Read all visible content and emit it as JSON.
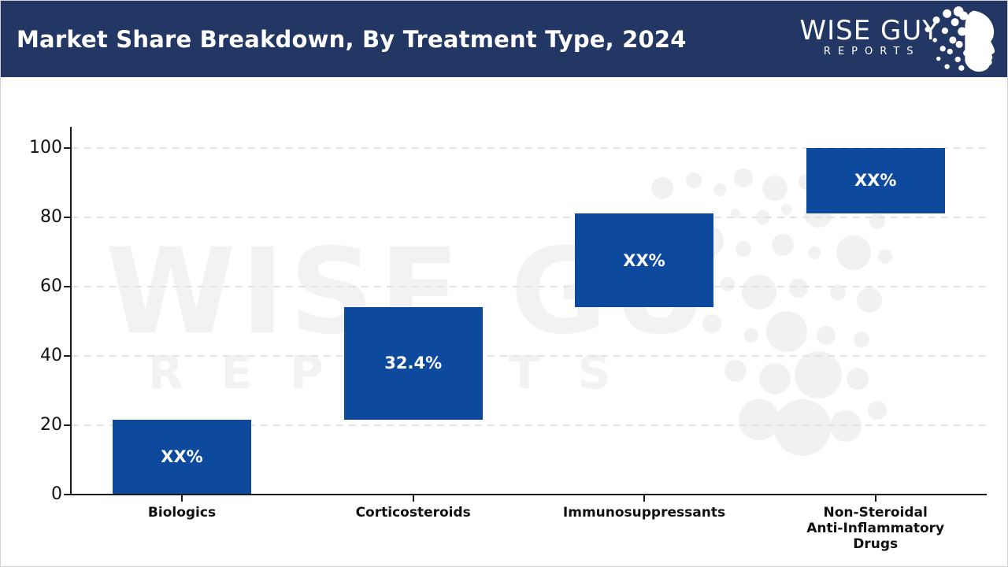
{
  "header": {
    "title": "Market Share Breakdown, By Treatment Type, 2024",
    "logo": {
      "line1": "WISE GUY",
      "line2": "REPORTS"
    }
  },
  "watermark": {
    "line1": "WISE GU",
    "line2": "REPORTS"
  },
  "colors": {
    "header_bg": "#233764",
    "bar": "#0d4a9e",
    "bar_label": "#ffffff",
    "grid": "#e4e4e4",
    "axis": "#1a1a1a",
    "watermark": "#f2f2f2"
  },
  "chart_data": {
    "type": "bar",
    "subtype": "waterfall",
    "title": "Market Share Breakdown, By Treatment Type, 2024",
    "categories": [
      "Biologics",
      "Corticosteroids",
      "Immunosuppressants",
      "Non-Steroidal\nAnti-Inflammatory\nDrugs"
    ],
    "segments": [
      {
        "category": "Biologics",
        "start": 0,
        "end": 21.6,
        "value": 21.6,
        "label": "XX%"
      },
      {
        "category": "Corticosteroids",
        "start": 21.6,
        "end": 54.0,
        "value": 32.4,
        "label": "32.4%"
      },
      {
        "category": "Immunosuppressants",
        "start": 54.0,
        "end": 81.0,
        "value": 27.0,
        "label": "XX%"
      },
      {
        "category": "Non-Steroidal Anti-Inflammatory Drugs",
        "start": 81.0,
        "end": 100.0,
        "value": 19.0,
        "label": "XX%"
      }
    ],
    "yticks": [
      0,
      20,
      40,
      60,
      80,
      100
    ],
    "ylim": [
      0,
      100
    ],
    "xlabel": "",
    "ylabel": "",
    "grid": "dashed-horizontal",
    "legend": "none"
  }
}
